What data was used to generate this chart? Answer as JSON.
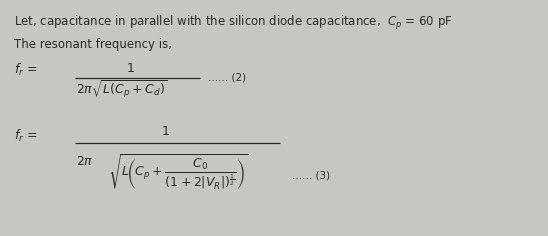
{
  "background_color": "#c8c6c0",
  "text_color": "#2a2a2a",
  "figsize": [
    5.48,
    2.36
  ],
  "dpi": 100,
  "fs_body": 8.5,
  "fs_eq": 9.0
}
